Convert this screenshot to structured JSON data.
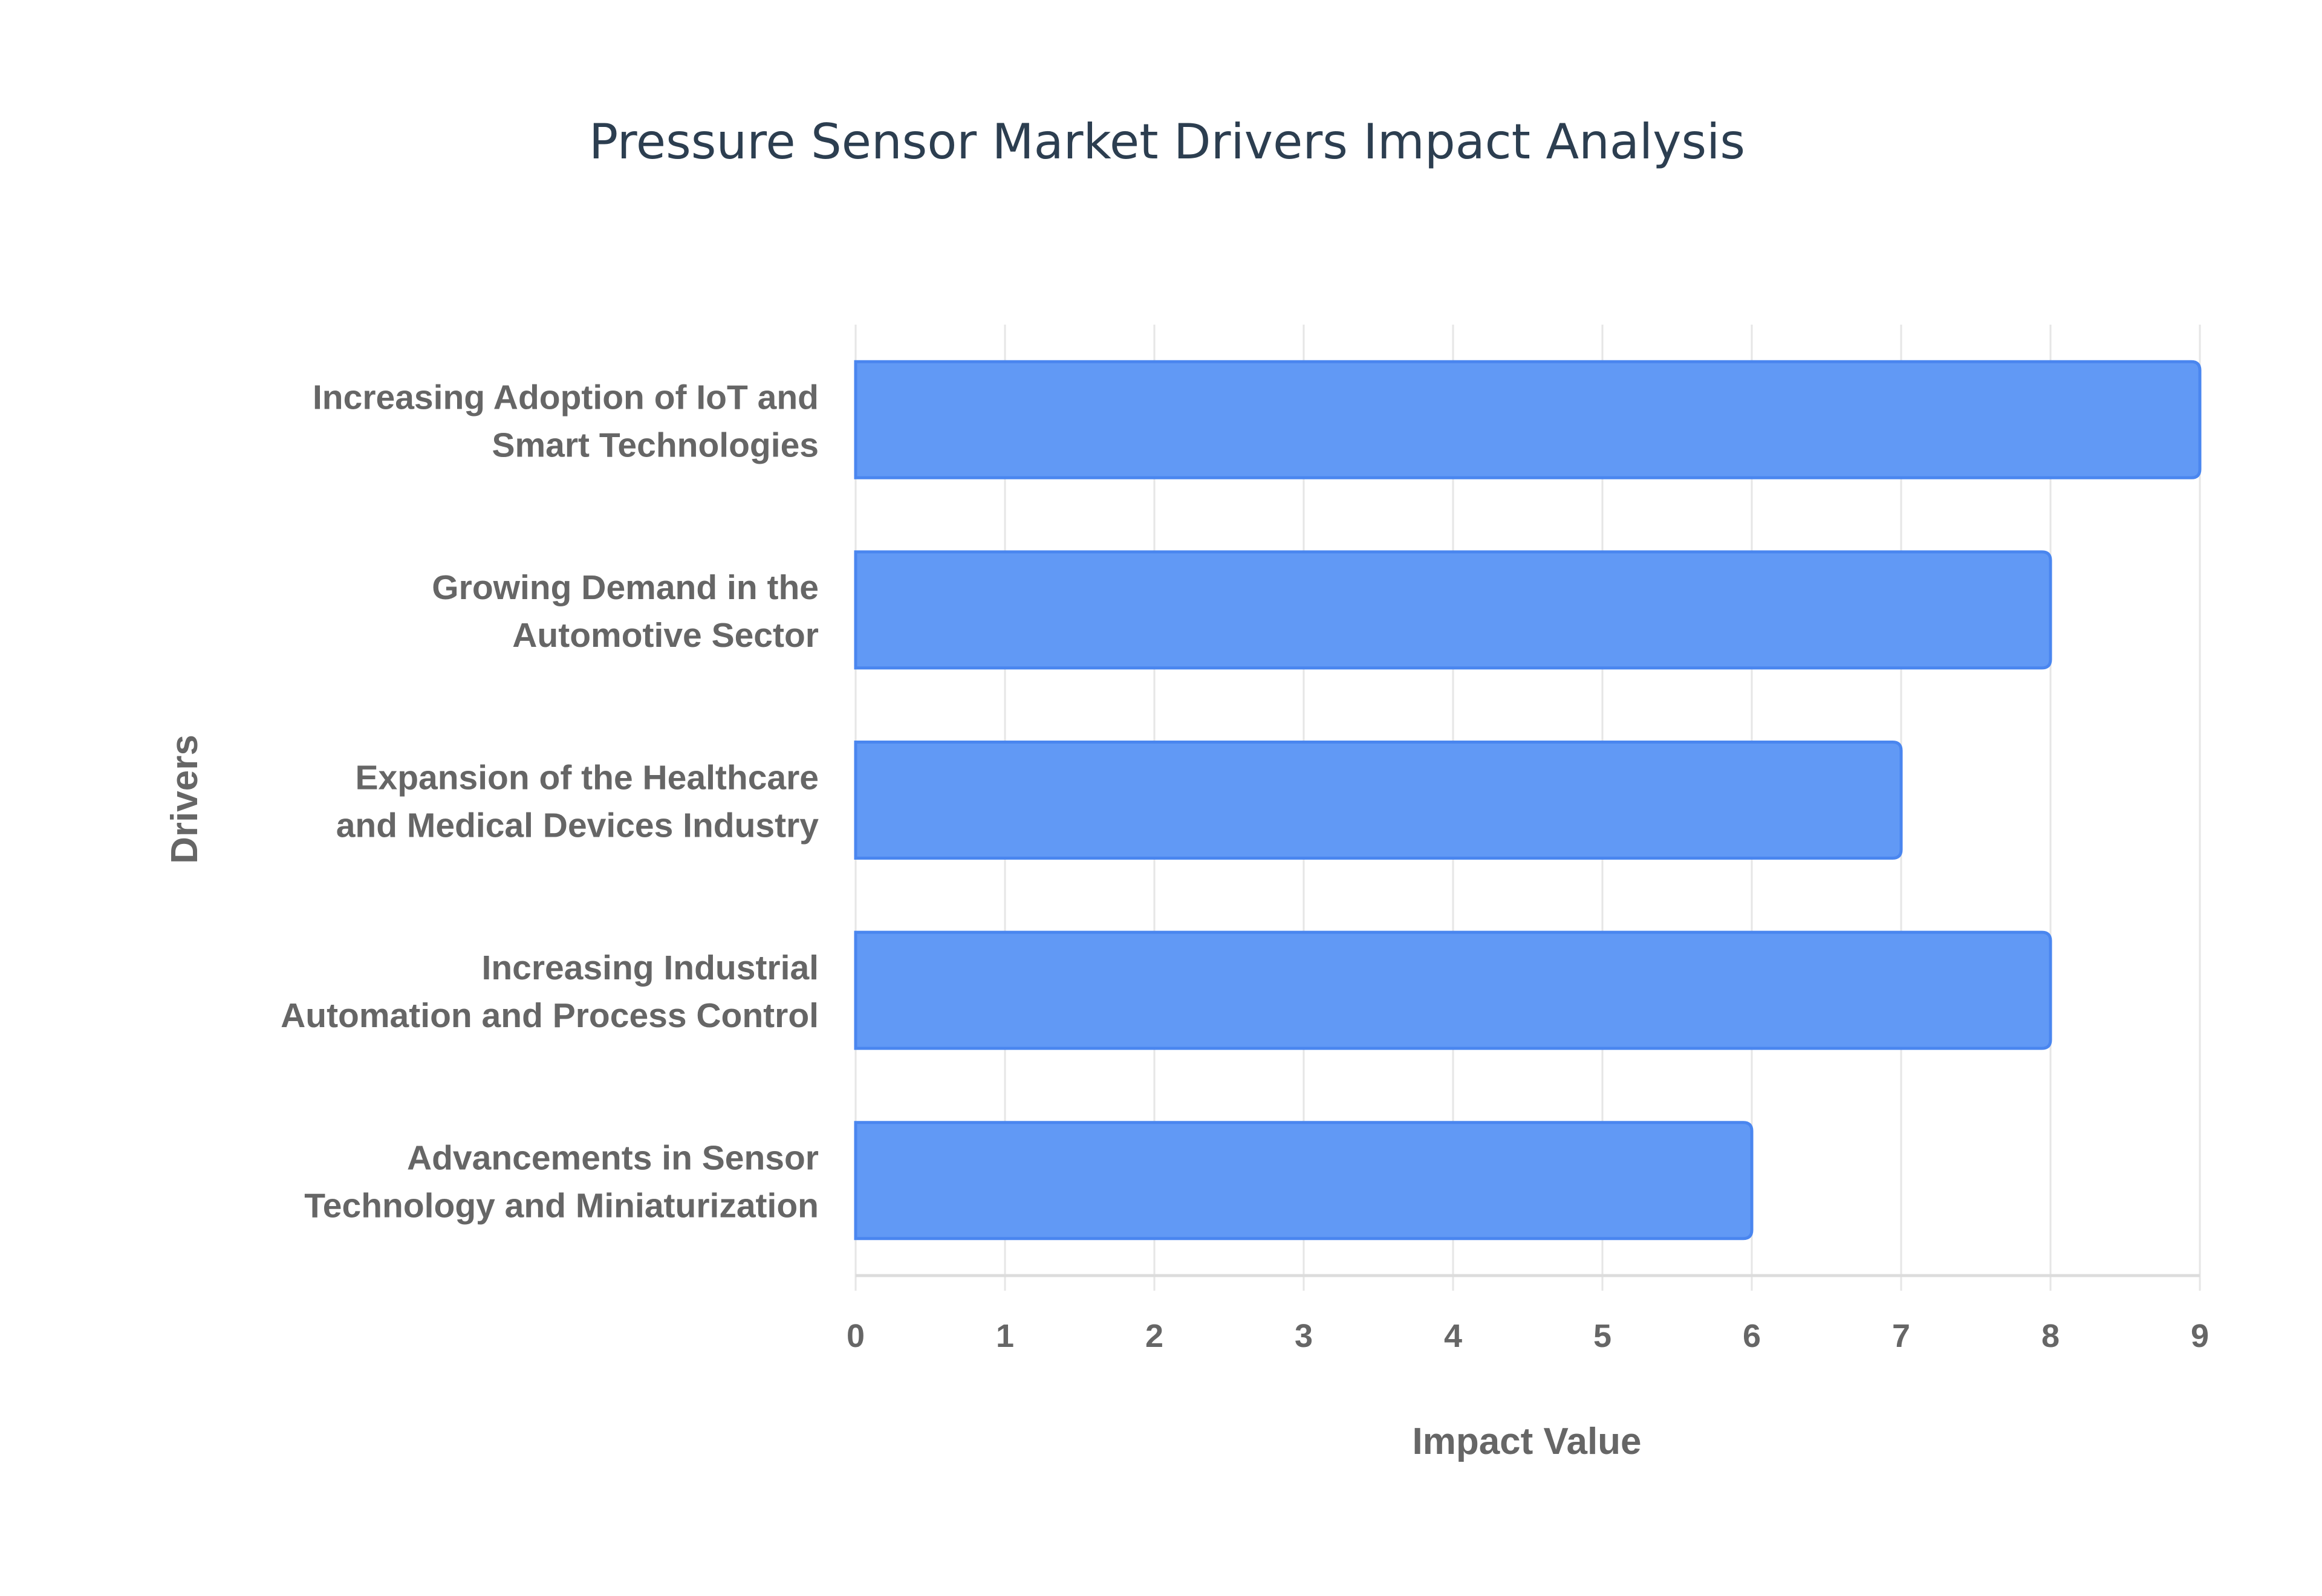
{
  "chart_data": {
    "type": "bar",
    "orientation": "horizontal",
    "title": "Pressure Sensor Market Drivers Impact Analysis",
    "xlabel": "Impact Value",
    "ylabel": "Drivers",
    "categories": [
      [
        "Increasing Adoption of IoT and",
        "Smart Technologies"
      ],
      [
        "Growing Demand in the",
        "Automotive Sector"
      ],
      [
        "Expansion of the Healthcare",
        "and Medical Devices Industry"
      ],
      [
        "Increasing Industrial",
        "Automation and Process Control"
      ],
      [
        "Advancements in Sensor",
        "Technology and Miniaturization"
      ]
    ],
    "values": [
      9,
      8,
      7,
      8,
      6
    ],
    "xlim": [
      0,
      9
    ],
    "xticks": [
      "0",
      "1",
      "2",
      "3",
      "4",
      "5",
      "6",
      "7",
      "8",
      "9"
    ],
    "grid": true,
    "bar_color": "#6199f5",
    "bar_border": "#4a86ef"
  }
}
